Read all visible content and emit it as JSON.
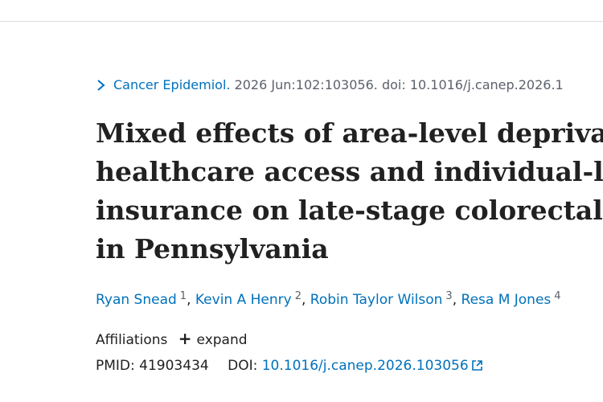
{
  "citation": {
    "journal": "Cancer Epidemiol.",
    "details": " 2026 Jun:102:103056. doi: 10.1016/j.canep.2026.1"
  },
  "article": {
    "title_lines": [
      "Mixed effects of area-level deprivation",
      "healthcare access and individual-level",
      "insurance on late-stage colorectal cancer",
      "in Pennsylvania"
    ],
    "authors": [
      {
        "name": "Ryan Snead",
        "aff": "1"
      },
      {
        "name": "Kevin A Henry",
        "aff": "2"
      },
      {
        "name": "Robin Taylor Wilson",
        "aff": "3"
      },
      {
        "name": "Resa M Jones",
        "aff": "4"
      }
    ],
    "affiliations_label": "Affiliations",
    "expand_label": "expand",
    "pmid_label": "PMID:",
    "pmid": "41903434",
    "doi_label": "DOI:",
    "doi": "10.1016/j.canep.2026.103056"
  },
  "icons": {
    "breadcrumb": "chevron-right-icon",
    "expand": "plus-icon",
    "external": "external-link-icon"
  },
  "colors": {
    "link": "#0071bc",
    "text": "#212121",
    "muted": "#5b616b"
  }
}
